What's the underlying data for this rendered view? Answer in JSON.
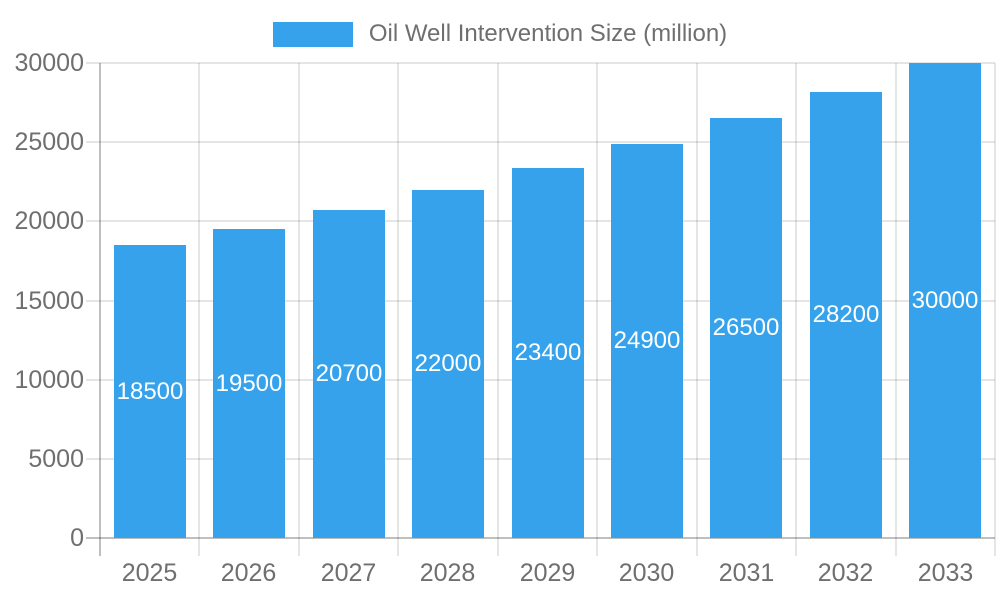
{
  "legend": {
    "label": "Oil Well Intervention Size (million)"
  },
  "chart_data": {
    "type": "bar",
    "title": "Oil Well Intervention Size (million)",
    "categories": [
      "2025",
      "2026",
      "2027",
      "2028",
      "2029",
      "2030",
      "2031",
      "2032",
      "2033"
    ],
    "series": [
      {
        "name": "Oil Well Intervention Size (million)",
        "values": [
          18500,
          19500,
          20700,
          22000,
          23400,
          24900,
          26500,
          28200,
          30000
        ]
      }
    ],
    "data_labels": [
      "18500",
      "19500",
      "20700",
      "22000",
      "23400",
      "24900",
      "26500",
      "28200",
      "30000"
    ],
    "xlabel": "",
    "ylabel": "",
    "ylim": [
      0,
      30000
    ],
    "ytick_step": 5000,
    "ytick_labels": [
      "0",
      "5000",
      "10000",
      "15000",
      "20000",
      "25000",
      "30000"
    ],
    "grid": true,
    "legend_position": "top"
  },
  "colors": {
    "bar": "#36a2eb",
    "tick_text": "#6f6f6f",
    "grid": "rgba(0,0,0,0.1)",
    "axis": "rgba(0,0,0,0.25)",
    "data_label": "#ffffff",
    "background": "#ffffff"
  }
}
